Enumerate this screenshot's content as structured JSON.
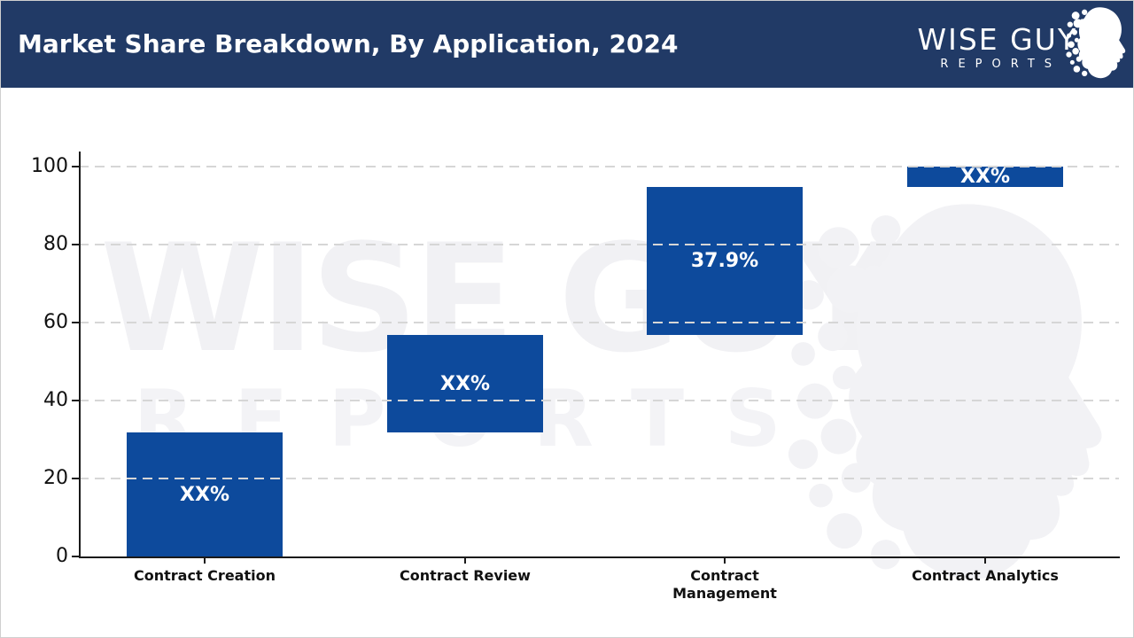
{
  "header": {
    "title": "Market Share Breakdown, By Application, 2024",
    "logo": {
      "line1": "WISE GUY",
      "line2": "REPORTS",
      "head_icon": "dotted-head-profile"
    }
  },
  "watermark": {
    "line1": "WISE GUY",
    "line2": "REPORTS"
  },
  "colors": {
    "header_bg": "#213a66",
    "bar": "#0d4a9c",
    "bar_label": "#ffffff",
    "axis": "#1a1a1a",
    "gridline": "#d6d6d6",
    "watermark": "#f1f1f4"
  },
  "chart_data": {
    "type": "bar",
    "variant": "waterfall",
    "title": "Market Share Breakdown, By Application, 2024",
    "categories": [
      "Contract Creation",
      "Contract Review",
      "Contract Management",
      "Contract Analytics"
    ],
    "category_display_lines": [
      [
        "Contract Creation"
      ],
      [
        "Contract Review"
      ],
      [
        "Contract",
        "Management"
      ],
      [
        "Contract Analytics"
      ]
    ],
    "segments": [
      {
        "category": "Contract Creation",
        "start": 0,
        "end": 31.8,
        "value_label": "XX%"
      },
      {
        "category": "Contract Review",
        "start": 31.8,
        "end": 56.8,
        "value_label": "XX%"
      },
      {
        "category": "Contract Management",
        "start": 56.8,
        "end": 94.7,
        "value_label": "37.9%"
      },
      {
        "category": "Contract Analytics",
        "start": 94.7,
        "end": 100,
        "value_label": "XX%"
      }
    ],
    "yticks": [
      0,
      20,
      40,
      60,
      80,
      100
    ],
    "ylim": [
      0,
      104
    ],
    "xlabel": "",
    "ylabel": "",
    "grid": {
      "horizontal": true,
      "style": "dashed"
    },
    "legend": null
  }
}
